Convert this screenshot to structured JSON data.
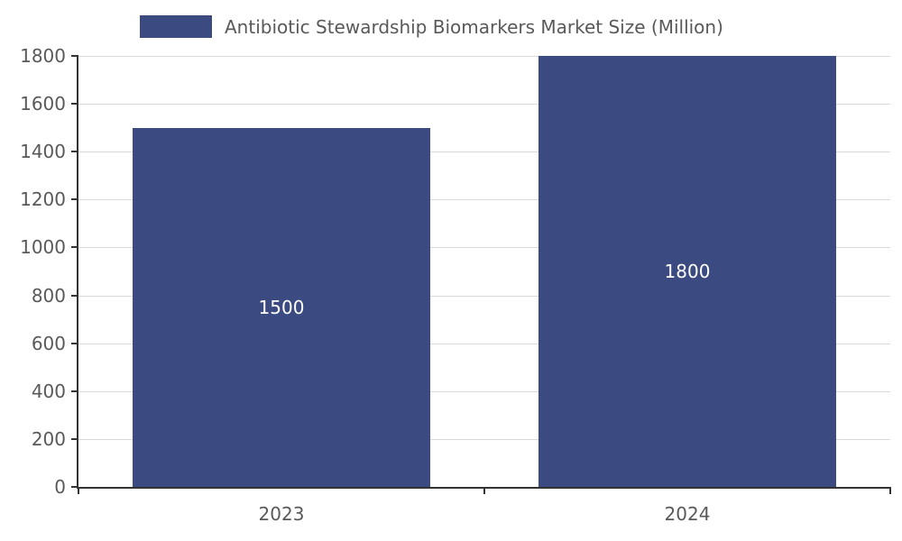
{
  "legend": {
    "label": "Antibiotic Stewardship Biomarkers Market Size (Million)"
  },
  "chart_data": {
    "type": "bar",
    "title": "Antibiotic Stewardship Biomarkers Market Size (Million)",
    "categories": [
      "2023",
      "2024"
    ],
    "values": [
      1500,
      1800
    ],
    "value_labels": [
      "1500",
      "1800"
    ],
    "xlabel": "",
    "ylabel": "",
    "ylim": [
      0,
      1800
    ],
    "ytick_step": 200,
    "ytick_labels": [
      "0",
      "200",
      "400",
      "600",
      "800",
      "1000",
      "1200",
      "1400",
      "1600",
      "1800"
    ],
    "grid": true,
    "legend_position": "top",
    "bar_color": "#3b4b82",
    "value_label_color": "#ffffff",
    "text_color": "#595959",
    "grid_color": "#d9d9d9",
    "axis_color": "#333333"
  }
}
